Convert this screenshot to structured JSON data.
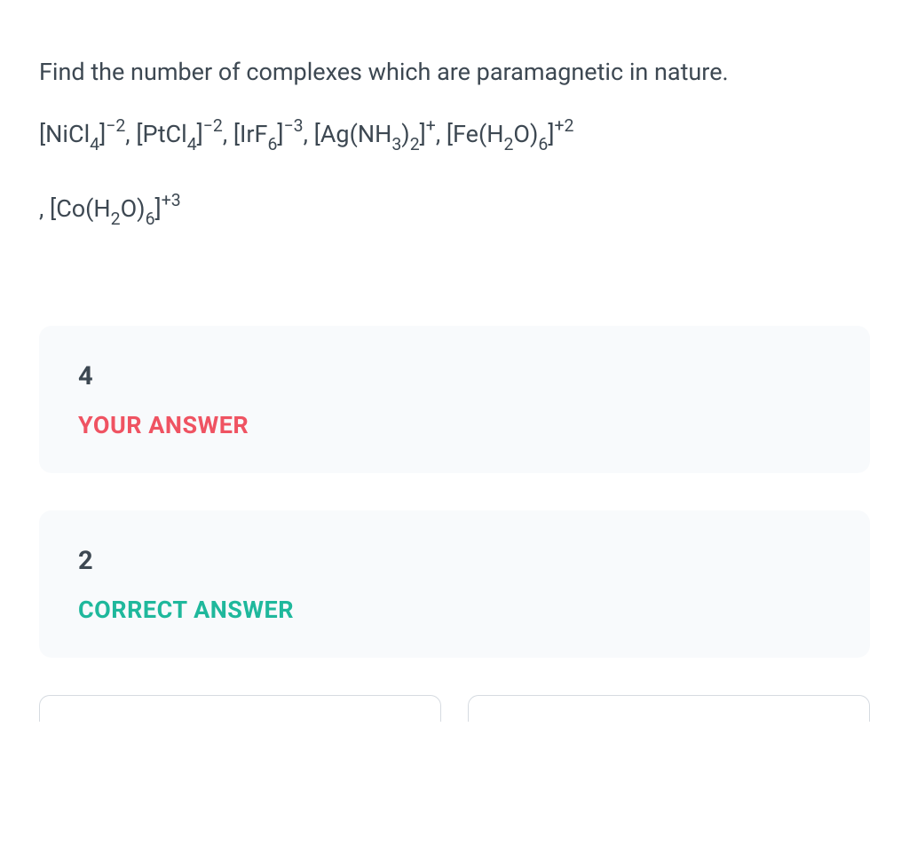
{
  "question": {
    "text": "Find the number of complexes which are paramagnetic in nature.",
    "text_color": "#3d4852",
    "fontsize": 27
  },
  "complexes": [
    {
      "base": "NiCl",
      "sub": "4",
      "charge": "−2"
    },
    {
      "base": "PtCl",
      "sub": "4",
      "charge": "−2"
    },
    {
      "base": "IrF",
      "sub": "6",
      "charge": "−3"
    },
    {
      "base": "Ag(NH",
      "sub1": "3",
      "mid": ")",
      "sub2": "2",
      "charge": "+"
    },
    {
      "base": "Fe(H",
      "sub1": "2",
      "mid": "O)",
      "sub2": "6",
      "charge": "+2"
    },
    {
      "base": "Co(H",
      "sub1": "2",
      "mid": "O)",
      "sub2": "6",
      "charge": "+3"
    }
  ],
  "your_answer": {
    "value": "4",
    "label": "YOUR ANSWER",
    "label_color": "#ef5362",
    "card_bg": "#f8fafc"
  },
  "correct_answer": {
    "value": "2",
    "label": "CORRECT ANSWER",
    "label_color": "#1fb89c",
    "card_bg": "#f8fafc"
  },
  "colors": {
    "body_bg": "#ffffff",
    "text": "#3d4852",
    "card_bg": "#f8fafc",
    "button_border": "#d6dbe1"
  }
}
